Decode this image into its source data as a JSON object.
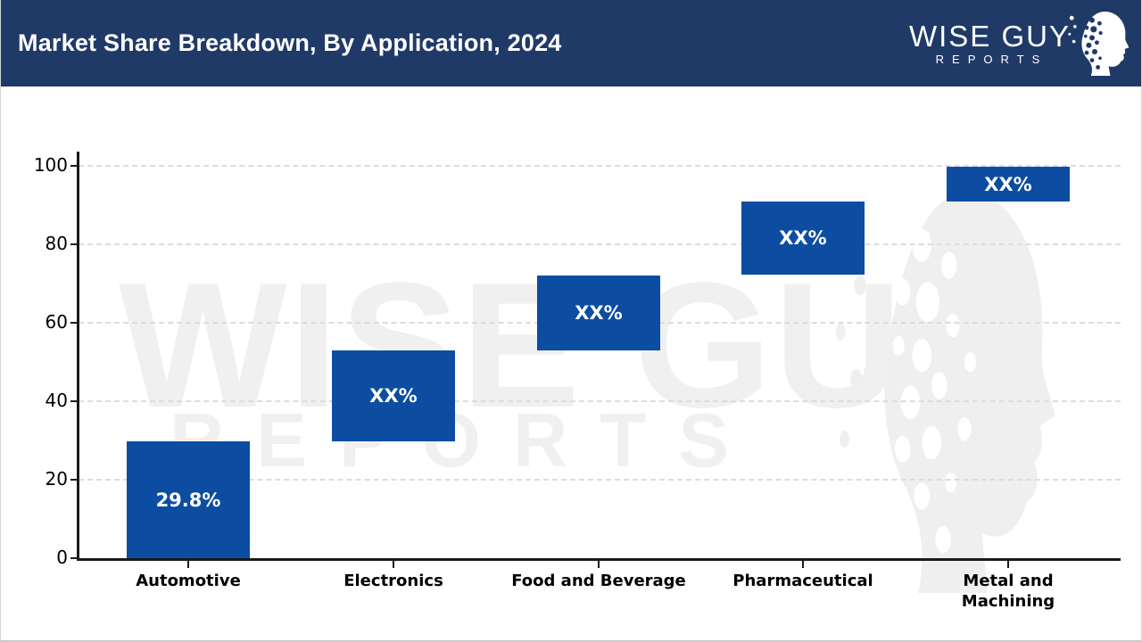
{
  "header": {
    "title": "Market Share Breakdown, By Application, 2024",
    "bg_color": "#203a68",
    "logo": {
      "line1": "WISE GUY",
      "line2": "REPORTS"
    }
  },
  "watermark": {
    "line1": "WISE GUY",
    "line2": "REPORTS"
  },
  "chart_data": {
    "type": "bar",
    "subtype": "waterfall",
    "title": "Market Share Breakdown, By Application, 2024",
    "categories": [
      "Automotive",
      "Electronics",
      "Food and Beverage",
      "Pharmaceutical",
      "Metal and Machining"
    ],
    "tick_label_lines": [
      [
        "Automotive"
      ],
      [
        "Electronics"
      ],
      [
        "Food and Beverage"
      ],
      [
        "Pharmaceutical"
      ],
      [
        "Metal and",
        "Machining"
      ]
    ],
    "segments": [
      {
        "category": "Automotive",
        "start": 0,
        "end": 29.8,
        "label": "29.8%"
      },
      {
        "category": "Electronics",
        "start": 29.8,
        "end": 53.0,
        "label": "XX%"
      },
      {
        "category": "Food and Beverage",
        "start": 53.0,
        "end": 72.0,
        "label": "XX%"
      },
      {
        "category": "Pharmaceutical",
        "start": 72.3,
        "end": 91.0,
        "label": "XX%"
      },
      {
        "category": "Metal and Machining",
        "start": 91.0,
        "end": 99.8,
        "label": "XX%"
      }
    ],
    "yticks": [
      0,
      20,
      40,
      60,
      80,
      100
    ],
    "ylim": [
      0,
      104
    ],
    "xlabel": "",
    "ylabel": "",
    "legend": "none",
    "grid": {
      "axis": "y",
      "style": "dashed",
      "color": "#dcdcdc"
    },
    "bar_color": "#0c4da2",
    "bar_label_color": "#ffffff"
  }
}
